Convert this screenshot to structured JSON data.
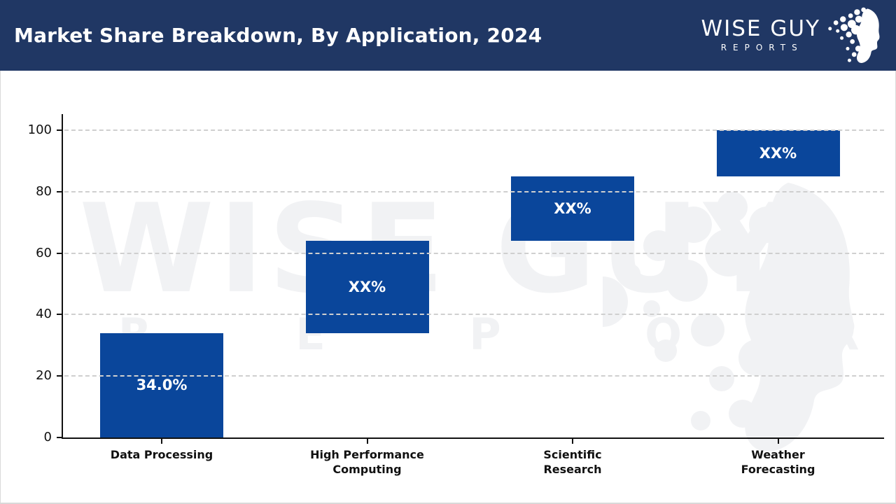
{
  "header": {
    "title": "Market Share Breakdown, By Application, 2024",
    "logo_line1": "WISE GUY",
    "logo_line2": "REPORTS"
  },
  "watermark": {
    "line1": "WISE GUY",
    "line2": "R E P O R T S"
  },
  "chart_data": {
    "type": "bar",
    "subtype": "floating-waterfall",
    "title": "Market Share Breakdown, By Application, 2024",
    "categories": [
      "Data Processing",
      "High Performance Computing",
      "Scientific Research",
      "Weather Forecasting"
    ],
    "category_display_lines": [
      [
        "Data Processing"
      ],
      [
        "High Performance",
        "Computing"
      ],
      [
        "Scientific",
        "Research"
      ],
      [
        "Weather",
        "Forecasting"
      ]
    ],
    "segments": [
      {
        "category": "Data Processing",
        "start": 0,
        "end": 34,
        "label": "34.0%"
      },
      {
        "category": "High Performance Computing",
        "start": 34,
        "end": 64,
        "label": "XX%"
      },
      {
        "category": "Scientific Research",
        "start": 64,
        "end": 85,
        "label": "XX%"
      },
      {
        "category": "Weather Forecasting",
        "start": 85,
        "end": 100,
        "label": "XX%"
      }
    ],
    "xlabel": "",
    "ylabel": "",
    "ylim": [
      0,
      100
    ],
    "yticks": [
      0,
      20,
      40,
      60,
      80,
      100
    ],
    "grid": "horizontal-dashed",
    "legend": "none",
    "bar_color": "#0a469b",
    "value_label_color": "#ffffff",
    "axis_color": "#111111",
    "grid_color": "#cfcfcf",
    "header_bg": "#203764"
  }
}
